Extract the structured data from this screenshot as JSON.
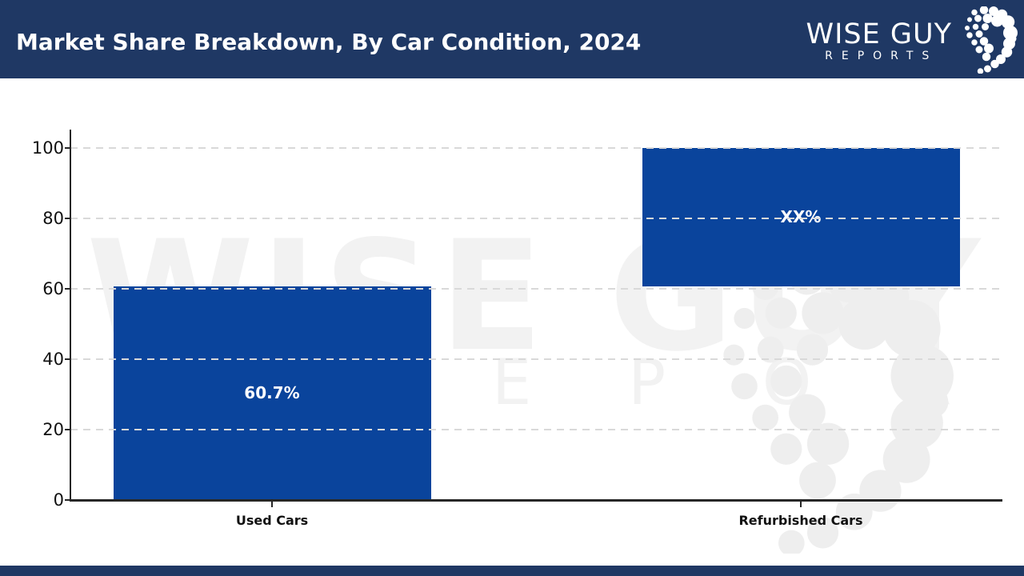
{
  "header": {
    "title": "Market Share Breakdown, By Car Condition, 2024",
    "logo": {
      "line1": "WISE GUY",
      "line2": "REPORTS"
    }
  },
  "watermark": {
    "line1": "WISE GUY",
    "line2": "R E P O R T S"
  },
  "colors": {
    "header_bg": "#1f3864",
    "footer_bg": "#1f3864",
    "header_text": "#ffffff",
    "background": "#ffffff",
    "bar": "#0a449c",
    "bar_label": "#ffffff",
    "axis": "#262626",
    "tick_label": "#111111",
    "gridline": "#d9d9d9",
    "watermark": "#f2f2f2"
  },
  "chart_data": {
    "type": "bar",
    "title": "Market Share Breakdown, By Car Condition, 2024",
    "categories": [
      "Used Cars",
      "Refurbished Cars"
    ],
    "bars": [
      {
        "category": "Used Cars",
        "value_label": "60.7%",
        "start": 0,
        "end": 60.7
      },
      {
        "category": "Refurbished Cars",
        "value_label": "XX%",
        "start": 60.7,
        "end": 100
      }
    ],
    "yticks": [
      0,
      20,
      40,
      60,
      80,
      100
    ],
    "ylim": [
      0,
      105
    ],
    "xlabel": "",
    "ylabel": "",
    "grid": {
      "axis": "y",
      "style": "dashed"
    },
    "legend": "none",
    "note": "Refurbished Cars segment is stacked from 60.7 to 100 (masked label XX%)"
  }
}
